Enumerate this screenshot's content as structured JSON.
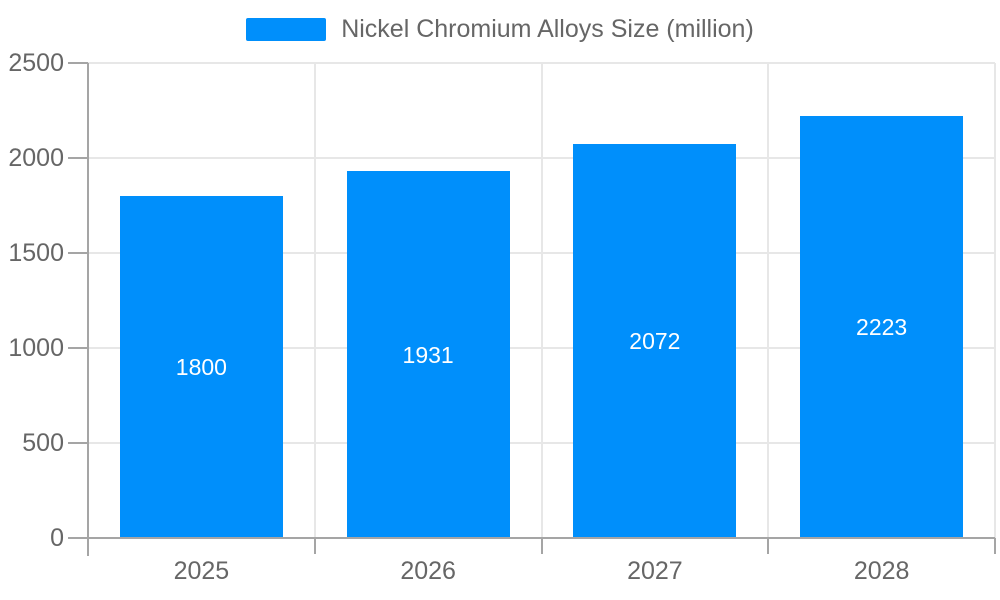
{
  "chart_data": {
    "type": "bar",
    "title": "Nickel Chromium Alloys Size (million)",
    "categories": [
      "2025",
      "2026",
      "2027",
      "2028"
    ],
    "series": [
      {
        "name": "Nickel Chromium Alloys Size (million)",
        "values": [
          1800,
          1931,
          2072,
          2223
        ]
      }
    ],
    "value_labels": [
      "1800",
      "1931",
      "2072",
      "2223"
    ],
    "xlabel": "",
    "ylabel": "",
    "ylim": [
      0,
      2500
    ],
    "y_ticks": [
      0,
      500,
      1000,
      1500,
      2000,
      2500
    ],
    "y_tick_labels": [
      "0",
      "500",
      "1000",
      "1500",
      "2000",
      "2500"
    ],
    "grid": true,
    "legend_position": "top"
  },
  "legend": {
    "label": "Nickel Chromium Alloys Size (million)"
  },
  "colors": {
    "bar": "#008FFB",
    "grid": "#e7e7e7",
    "axis": "#a5a5a5",
    "tick_label": "#666666",
    "legend_text": "#666666",
    "value_label": "#ffffff",
    "background": "#ffffff"
  }
}
